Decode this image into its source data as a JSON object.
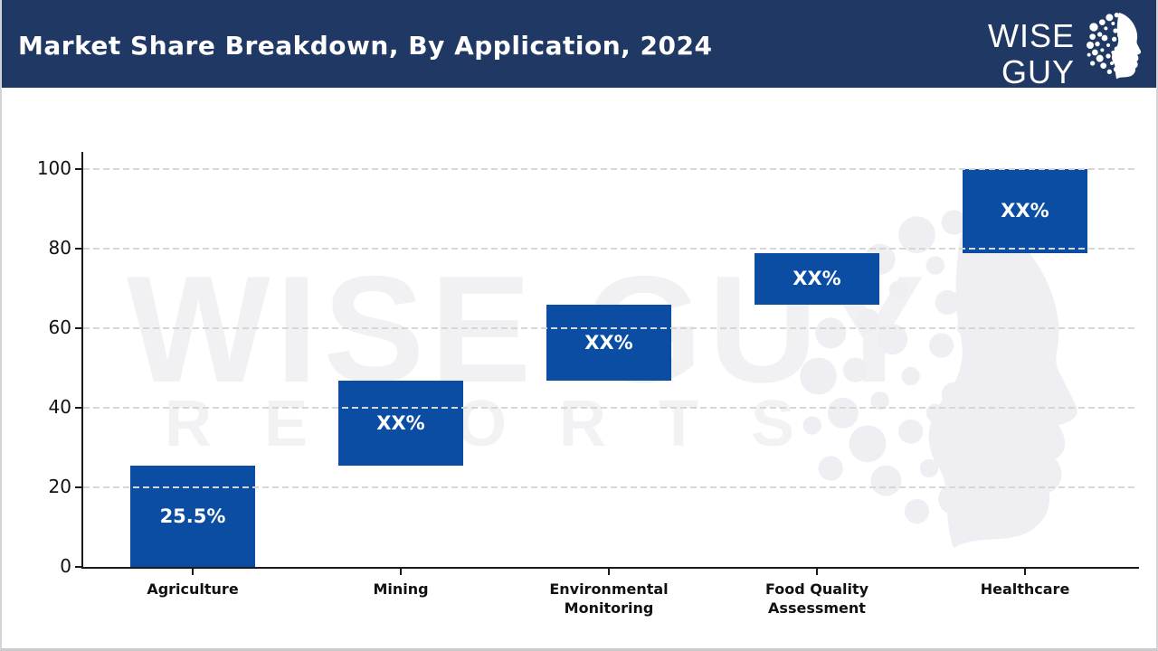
{
  "header": {
    "title": "Market Share Breakdown, By Application, 2024",
    "logo": {
      "line1": "WISE GUY",
      "line2": "REPORTS"
    }
  },
  "watermark": {
    "line1": "WISE GUY",
    "line2": "REPORTS"
  },
  "colors": {
    "header_bg": "#1f3864",
    "bar": "#0b4da2",
    "gridline": "#d6d6d6",
    "axis": "#1a1a1a",
    "watermark": "#f1f1f4",
    "bar_label_text": "#ffffff",
    "title_text": "#ffffff"
  },
  "chart_data": {
    "type": "bar",
    "subtype": "waterfall",
    "title": "Market Share Breakdown, By Application, 2024",
    "xlabel": "",
    "ylabel": "",
    "ylim": [
      0,
      100
    ],
    "yticks": [
      0,
      20,
      40,
      60,
      80,
      100
    ],
    "grid": "horizontal-dashed",
    "legend": "none",
    "categories": [
      "Agriculture",
      "Mining",
      "Environmental Monitoring",
      "Food Quality Assessment",
      "Healthcare"
    ],
    "segments": [
      {
        "category": "Agriculture",
        "start": 0,
        "end": 25.5,
        "label": "25.5%"
      },
      {
        "category": "Mining",
        "start": 25.5,
        "end": 46.9,
        "label": "XX%"
      },
      {
        "category": "Environmental Monitoring",
        "start": 46.9,
        "end": 66.0,
        "label": "XX%"
      },
      {
        "category": "Food Quality Assessment",
        "start": 66.0,
        "end": 78.9,
        "label": "XX%"
      },
      {
        "category": "Healthcare",
        "start": 78.9,
        "end": 100,
        "label": "XX%"
      }
    ]
  }
}
